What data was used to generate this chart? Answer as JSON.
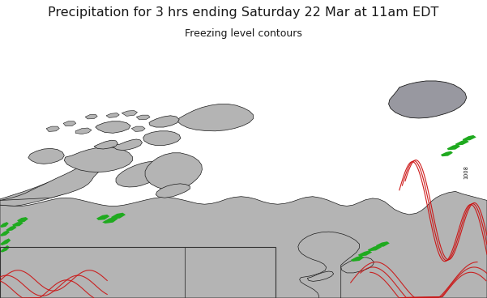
{
  "title": "Precipitation for 3 hrs ending Saturday 22 Mar at 11am EDT",
  "subtitle": "Freezing level contours",
  "title_fontsize": 11.5,
  "subtitle_fontsize": 9,
  "title_color": "#1a1a1a",
  "header_bg": "#ffffff",
  "map_bg_color": "#ccd6e8",
  "land_color": "#b4b4b4",
  "land_edge": "#1a1a1a",
  "precip_green": "#1faa1f",
  "precip_red": "#cc1111",
  "figsize": [
    6.01,
    3.68
  ],
  "dpi": 100
}
